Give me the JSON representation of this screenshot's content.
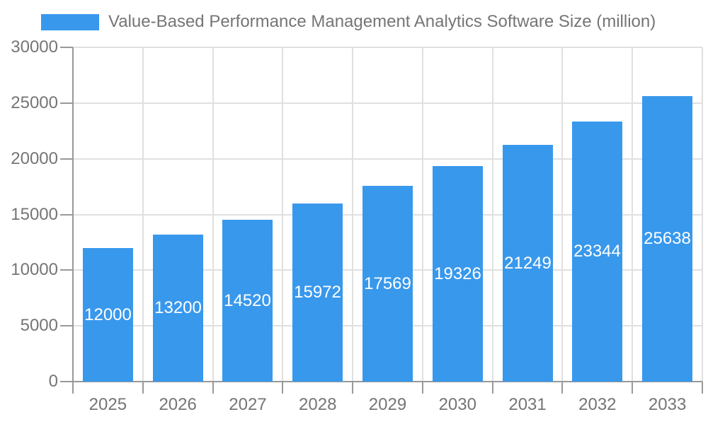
{
  "chart_data": {
    "type": "bar",
    "title": "Value-Based Performance Management Analytics Software Size (million)",
    "legend": [
      "Value-Based Performance Management Analytics Software Size (million)"
    ],
    "legend_position": "top-left",
    "categories": [
      "2025",
      "2026",
      "2027",
      "2028",
      "2029",
      "2030",
      "2031",
      "2032",
      "2033"
    ],
    "series": [
      {
        "name": "Value-Based Performance Management Analytics Software Size (million)",
        "values": [
          12000,
          13200,
          14520,
          15972,
          17569,
          19326,
          21249,
          23344,
          25638
        ]
      }
    ],
    "bar_labels": [
      "12000",
      "13200",
      "14520",
      "15972",
      "17569",
      "19326",
      "21249",
      "23344",
      "25638"
    ],
    "xlabel": "",
    "ylabel": "",
    "ylim": [
      0,
      30000
    ],
    "yticks": [
      0,
      5000,
      10000,
      15000,
      20000,
      25000,
      30000
    ],
    "ytick_labels": [
      "0",
      "5000",
      "10000",
      "15000",
      "20000",
      "25000",
      "30000"
    ],
    "grid": true
  },
  "colors": {
    "bar": "#3898EC",
    "bar_label": "#FFFFFF",
    "grid": "#E0E0E0",
    "axis": "#999999",
    "tick_label": "#757575",
    "legend_text": "#757575",
    "background": "#FFFFFF"
  }
}
